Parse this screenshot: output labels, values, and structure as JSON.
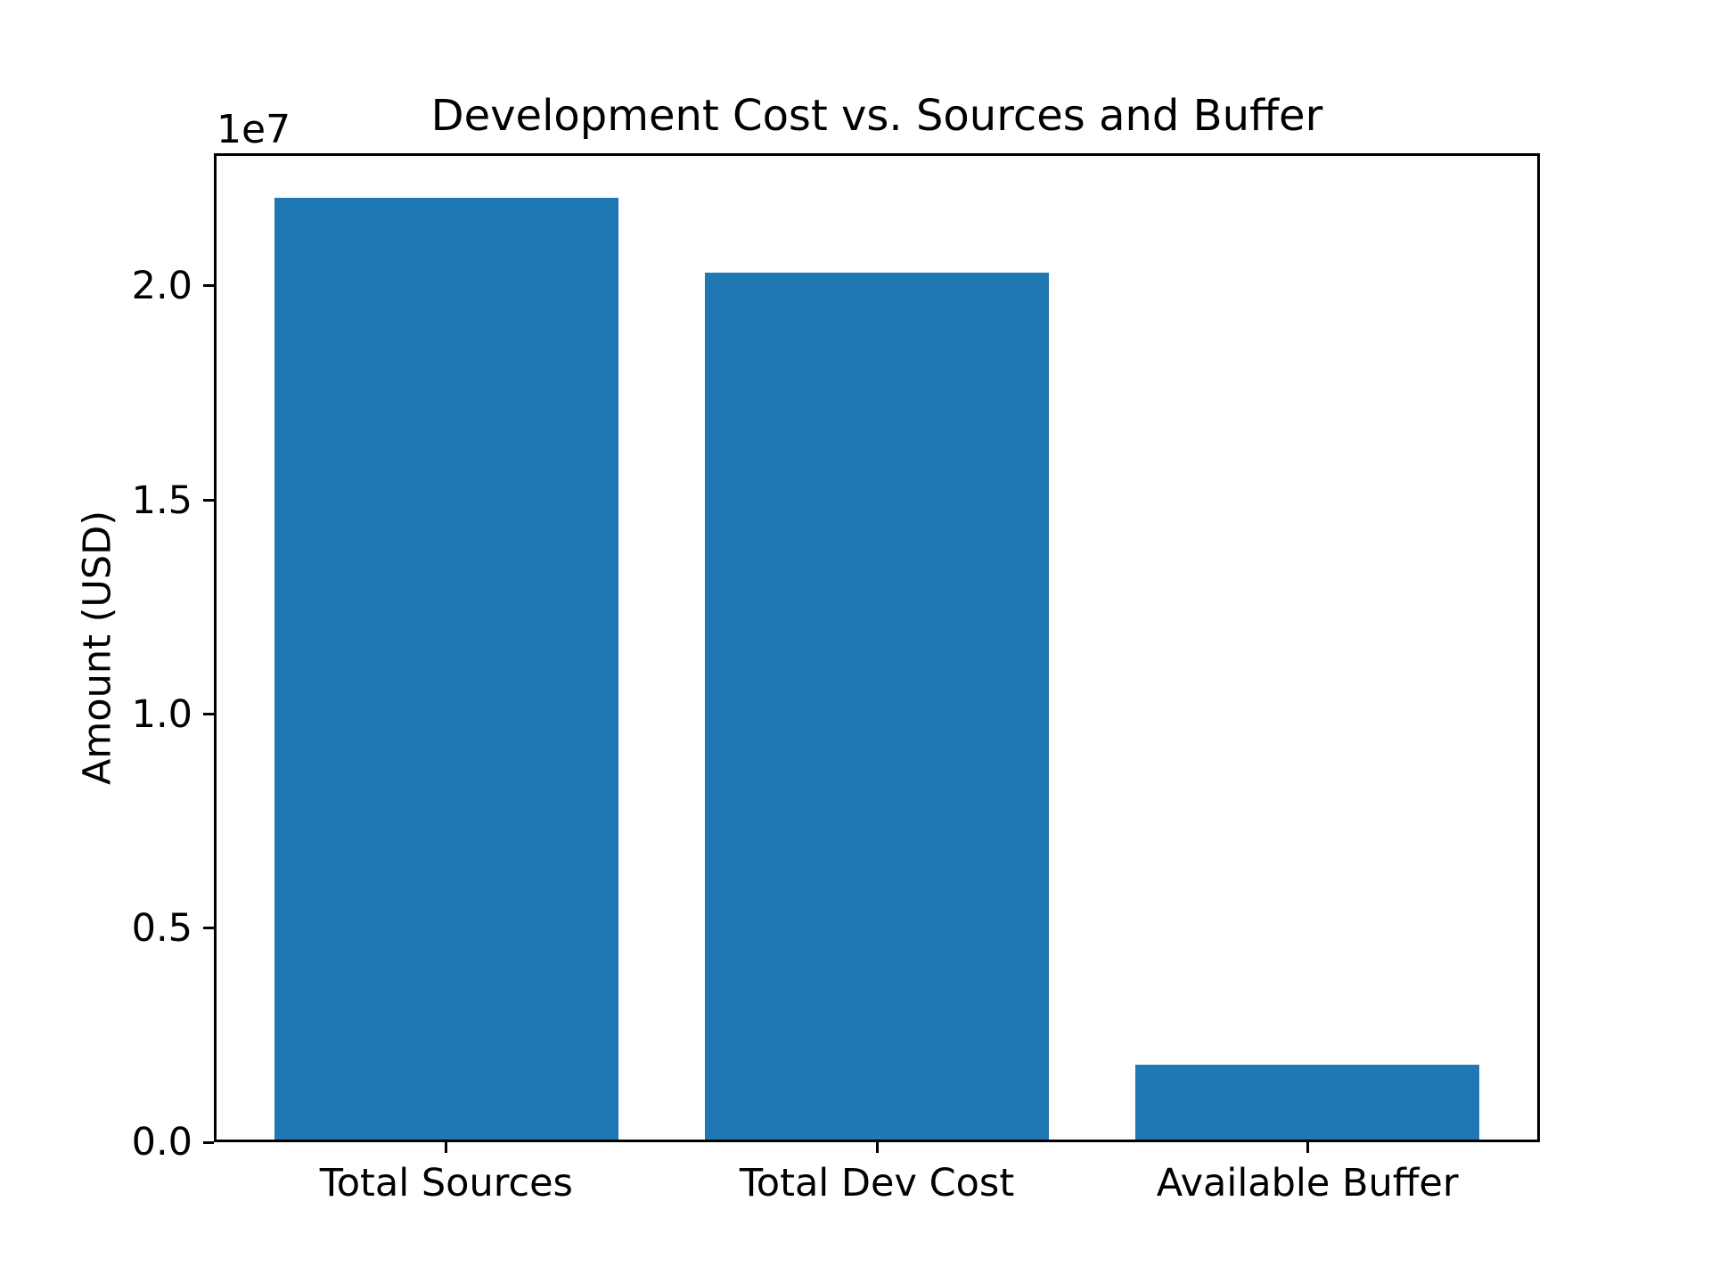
{
  "chart_data": {
    "type": "bar",
    "title": "Development Cost vs. Sources and Buffer",
    "ylabel": "Amount (USD)",
    "xlabel": "",
    "offset_text": "1e7",
    "categories": [
      "Total Sources",
      "Total Dev Cost",
      "Available Buffer"
    ],
    "values": [
      22000000,
      20250000,
      1750000
    ],
    "bar_color": "#1f77b4",
    "bar_width_fraction": 0.8,
    "x_margin_fraction": 0.05,
    "ylim": [
      0,
      23100000
    ],
    "yticks": [
      0,
      5000000,
      10000000,
      15000000,
      20000000
    ],
    "ytick_labels": [
      "0.0",
      "0.5",
      "1.0",
      "1.5",
      "2.0"
    ],
    "grid": false,
    "legend": null
  }
}
